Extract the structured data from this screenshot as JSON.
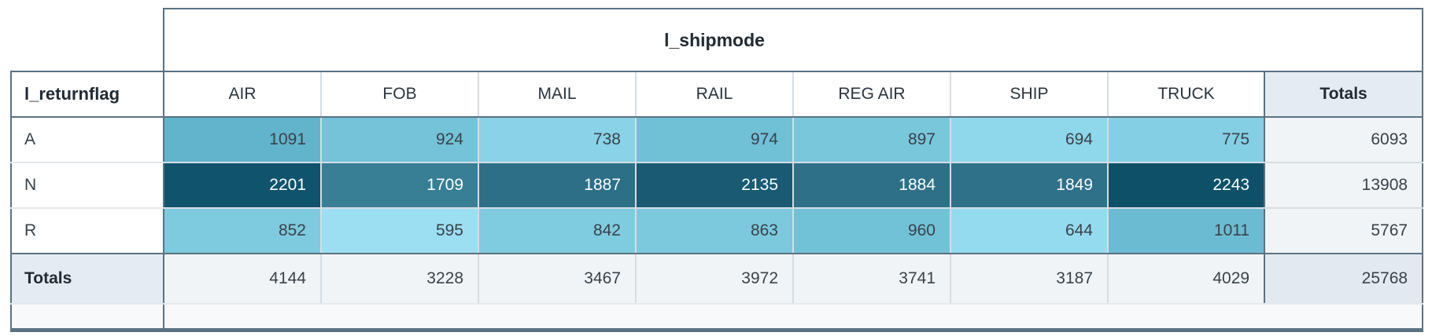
{
  "chart_data": {
    "type": "heatmap",
    "title": "l_shipmode",
    "col_dimension": "l_shipmode",
    "row_dimension": "l_returnflag",
    "totals_label": "Totals",
    "columns": [
      "AIR",
      "FOB",
      "MAIL",
      "RAIL",
      "REG AIR",
      "SHIP",
      "TRUCK"
    ],
    "rows": [
      "A",
      "N",
      "R"
    ],
    "values": [
      [
        1091,
        924,
        738,
        974,
        897,
        694,
        775
      ],
      [
        2201,
        1709,
        1887,
        2135,
        1884,
        1849,
        2243
      ],
      [
        852,
        595,
        842,
        863,
        960,
        644,
        1011
      ]
    ],
    "row_totals": [
      6093,
      13908,
      5767
    ],
    "column_totals": [
      4144,
      3228,
      3467,
      3972,
      3741,
      3187,
      4029
    ],
    "grand_total": 25768,
    "cell_colors": [
      [
        "#61b4cb",
        "#74c3d8",
        "#89d2e7",
        "#70c0d6",
        "#79c7db",
        "#8fd7eb",
        "#85cfe4"
      ],
      [
        "#10536c",
        "#387e94",
        "#2c6f87",
        "#1a5a73",
        "#2d7088",
        "#2e7189",
        "#0e5067"
      ],
      [
        "#7ecade",
        "#9cdef2",
        "#7fcbdf",
        "#7cc9dd",
        "#72c2d7",
        "#95dbef",
        "#6bbcd2"
      ]
    ],
    "cell_text_colors": [
      "dark",
      "light",
      "dark"
    ],
    "color_scale": {
      "min_value": 595,
      "max_value": 2243,
      "min_color": "#9cdef2",
      "max_color": "#0e5067"
    },
    "legend_position": "none",
    "grid": true
  },
  "colors": {
    "border_dark": "#5b7282",
    "divider_light": "#d5dde3",
    "totals_header_bg": "#e4ebf2",
    "totals_cell_bg": "#f1f4f6",
    "grand_total_bg": "#e3e9f0",
    "footer_strip_bg": "#f8f9fa",
    "text_dark": "#39424a",
    "text_light": "#fbfdfe",
    "header_text": "#222b33"
  }
}
